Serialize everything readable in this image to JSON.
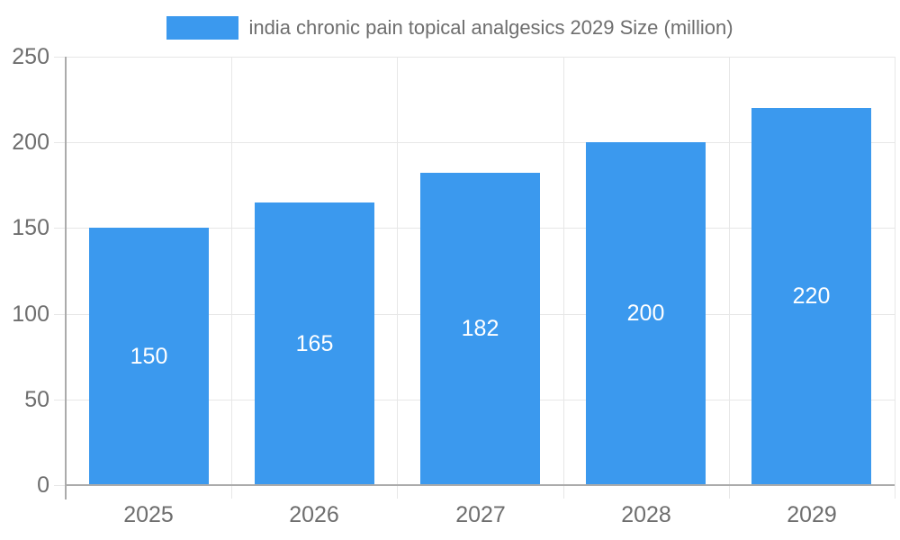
{
  "chart_data": {
    "type": "bar",
    "title": "",
    "legend_entries": [
      "india chronic pain topical analgesics 2029 Size (million)"
    ],
    "legend_position": "top",
    "categories": [
      "2025",
      "2026",
      "2027",
      "2028",
      "2029"
    ],
    "values": [
      150,
      165,
      182,
      200,
      220
    ],
    "xlabel": "",
    "ylabel": "",
    "ylim": [
      0,
      250
    ],
    "yticks": [
      0,
      50,
      100,
      150,
      200,
      250
    ],
    "grid": true,
    "value_labels": "inside-center",
    "colors": {
      "bar": "#3B99EE",
      "axis": "#ABABAB",
      "grid": "#E7E7E7",
      "tick_text": "#6E6E6E",
      "value_text": "#FFFFFF",
      "background": "#FFFFFF"
    }
  }
}
